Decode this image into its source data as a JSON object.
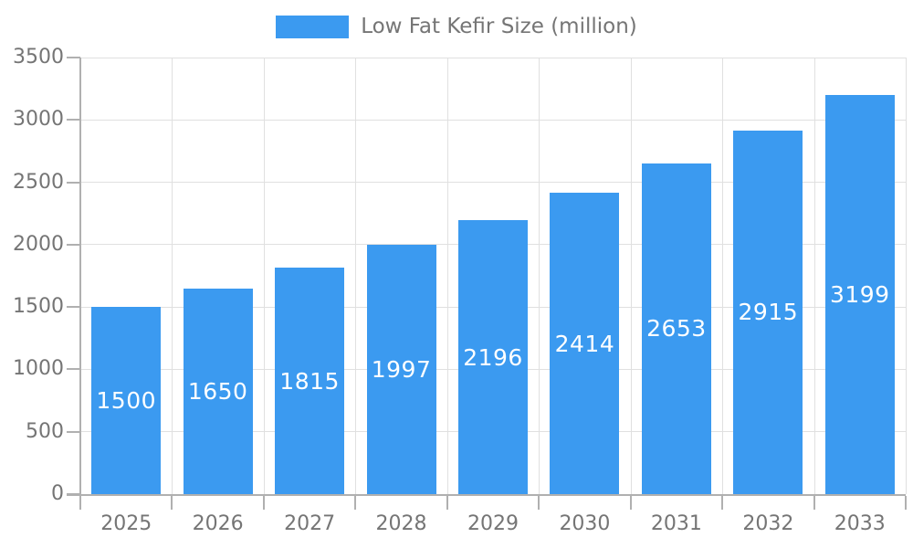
{
  "legend": {
    "label": "Low Fat Kefir Size (million)"
  },
  "chart_data": {
    "type": "bar",
    "title": "Low Fat Kefir Size (million)",
    "categories": [
      "2025",
      "2026",
      "2027",
      "2028",
      "2029",
      "2030",
      "2031",
      "2032",
      "2033"
    ],
    "values": [
      1500,
      1650,
      1815,
      1997,
      2196,
      2414,
      2653,
      2915,
      3199
    ],
    "series": [
      {
        "name": "Low Fat Kefir Size (million)",
        "values": [
          1500,
          1650,
          1815,
          1997,
          2196,
          2414,
          2653,
          2915,
          3199
        ]
      }
    ],
    "xlabel": "",
    "ylabel": "",
    "ylim": [
      0,
      3500
    ],
    "ytick_step": 500,
    "yticks": [
      0,
      500,
      1000,
      1500,
      2000,
      2500,
      3000,
      3500
    ],
    "grid": true,
    "legend_position": "top-center",
    "value_labels": "inside-center",
    "colors": {
      "bar": "#3b9af0",
      "bar_label": "#ffffff",
      "axis_text": "#757575",
      "grid_line": "#e0e0e0",
      "axis_line": "#b0b0b0"
    }
  }
}
